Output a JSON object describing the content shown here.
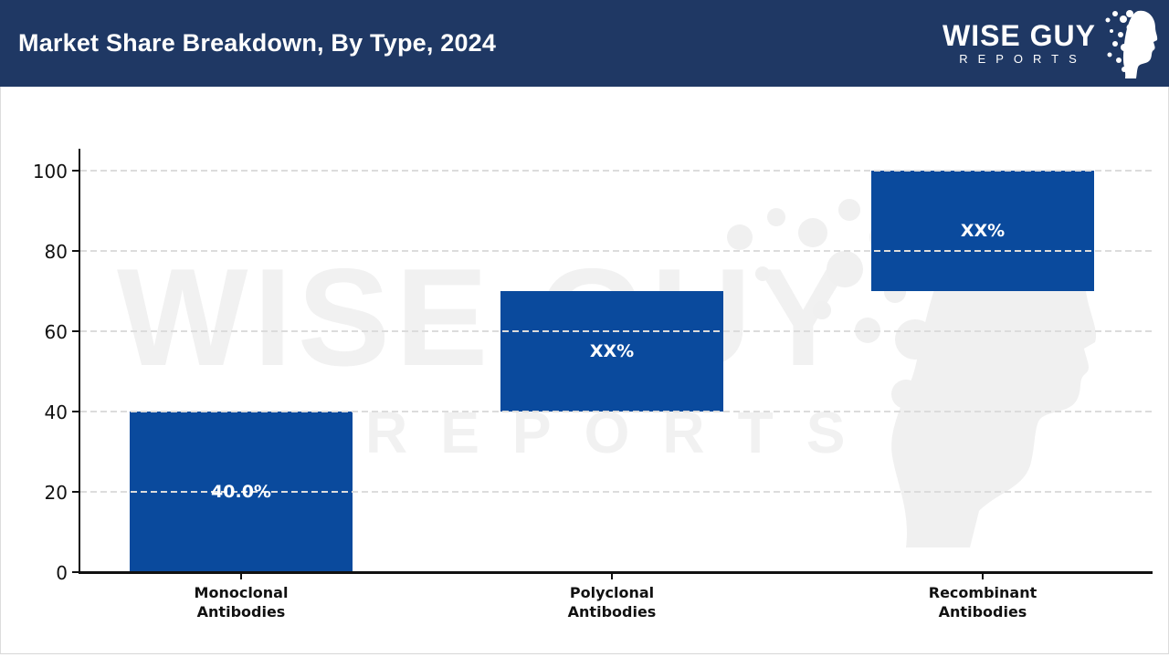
{
  "header": {
    "title": "Market Share Breakdown, By Type, 2024",
    "background_color": "#1f3864",
    "logo": {
      "primary": "WISE GUY",
      "secondary": "REPORTS"
    }
  },
  "watermark": {
    "primary": "WISE GUY",
    "secondary": "REPORTS"
  },
  "chart_data": {
    "type": "bar",
    "subtype": "floating-segment-bars",
    "title": "Market Share Breakdown, By Type, 2024",
    "categories": [
      "Monoclonal Antibodies",
      "Polyclonal Antibodies",
      "Recombinant Antibodies"
    ],
    "bars": [
      {
        "category_line1": "Monoclonal",
        "category_line2": "Antibodies",
        "start": 0,
        "end": 40,
        "value": 40,
        "label": "40.0%"
      },
      {
        "category_line1": "Polyclonal",
        "category_line2": "Antibodies",
        "start": 40,
        "end": 70,
        "value": 30,
        "label": "XX%"
      },
      {
        "category_line1": "Recombinant",
        "category_line2": "Antibodies",
        "start": 70,
        "end": 100,
        "value": 30,
        "label": "XX%"
      }
    ],
    "xlabel": "",
    "ylabel": "",
    "ylim": [
      0,
      100
    ],
    "yticks": [
      0,
      20,
      40,
      60,
      80,
      100
    ],
    "grid": "horizontal-dashed",
    "legend": "none",
    "bar_color": "#0a4a9d",
    "bar_label_color": "#ffffff"
  }
}
